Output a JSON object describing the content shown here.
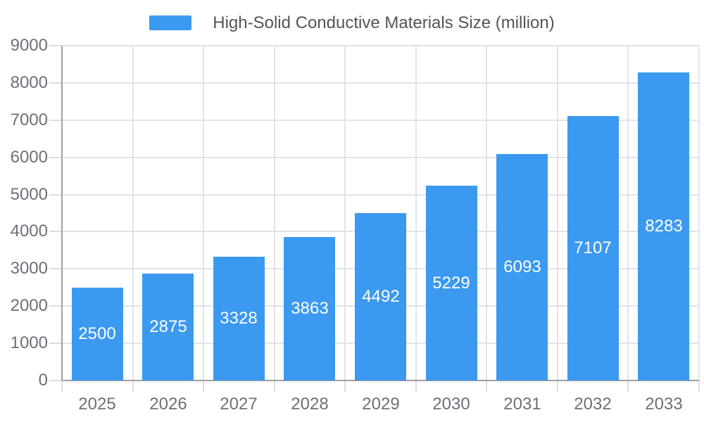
{
  "legend": {
    "label": "High-Solid Conductive Materials Size (million)"
  },
  "chart_data": {
    "type": "bar",
    "title": "High-Solid Conductive Materials Size (million)",
    "categories": [
      "2025",
      "2026",
      "2027",
      "2028",
      "2029",
      "2030",
      "2031",
      "2032",
      "2033"
    ],
    "values": [
      2500,
      2875,
      3328,
      3863,
      4492,
      5229,
      6093,
      7107,
      8283
    ],
    "series_name": "High-Solid Conductive Materials Size (million)",
    "xlabel": "",
    "ylabel": "",
    "ylim": [
      0,
      9000
    ],
    "ytick_step": 1000,
    "ytick_labels": [
      "0",
      "1000",
      "2000",
      "3000",
      "4000",
      "5000",
      "6000",
      "7000",
      "8000",
      "9000"
    ],
    "grid": true,
    "legend_position": "top-center",
    "value_labels_position": "inside-center",
    "colors": {
      "bar": "#3b99f0",
      "value_label": "#ffffff",
      "axis_text": "#6e7079",
      "legend_text": "#555555",
      "gridline": "#e4e4e4",
      "tick": "#dddddd",
      "axis_line": "#a0a0a0",
      "background": "#ffffff"
    }
  }
}
